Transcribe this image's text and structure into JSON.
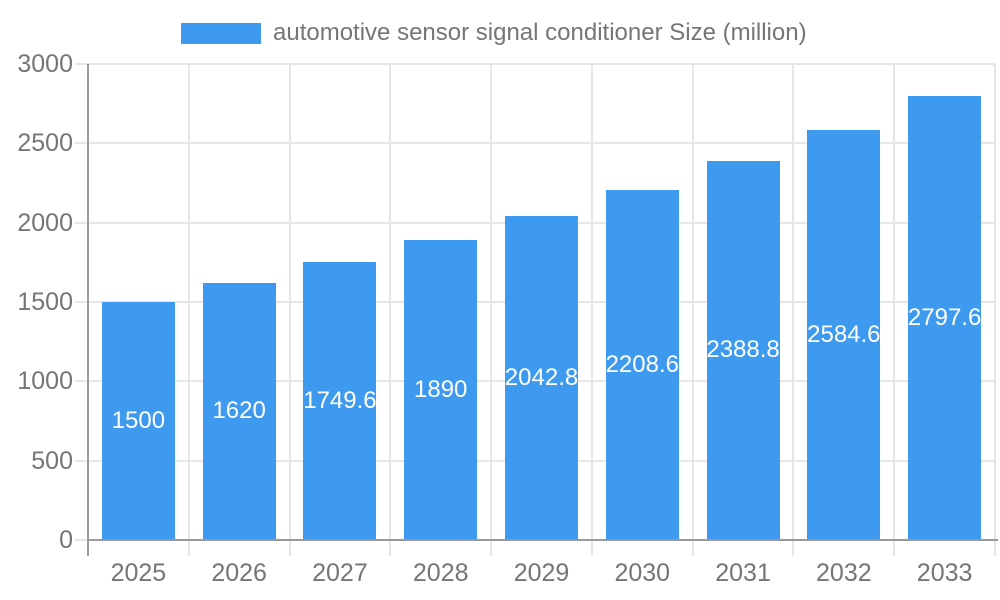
{
  "chart_data": {
    "type": "bar",
    "title": "automotive sensor signal conditioner Size (million)",
    "categories": [
      "2025",
      "2026",
      "2027",
      "2028",
      "2029",
      "2030",
      "2031",
      "2032",
      "2033"
    ],
    "values": [
      1500,
      1620,
      1749.6,
      1890,
      2042.8,
      2208.6,
      2388.8,
      2584.6,
      2797.6
    ],
    "value_labels": [
      "1500",
      "1620",
      "1749.6",
      "1890",
      "2042.8",
      "2208.6",
      "2388.8",
      "2584.6",
      "2797.6"
    ],
    "xlabel": "",
    "ylabel": "",
    "ylim": [
      0,
      3000
    ],
    "ytick_step": 500,
    "ytick_labels": [
      "0",
      "500",
      "1000",
      "1500",
      "2000",
      "2500",
      "3000"
    ],
    "grid": true,
    "legend_position": "top",
    "colors": {
      "bar": "#3d9aee",
      "bar_value_text": "#ffffff",
      "gridline": "#e6e6e6",
      "axis_line": "#999999",
      "axis_text": "#757575",
      "legend_text": "#757575",
      "background": "#ffffff"
    }
  }
}
